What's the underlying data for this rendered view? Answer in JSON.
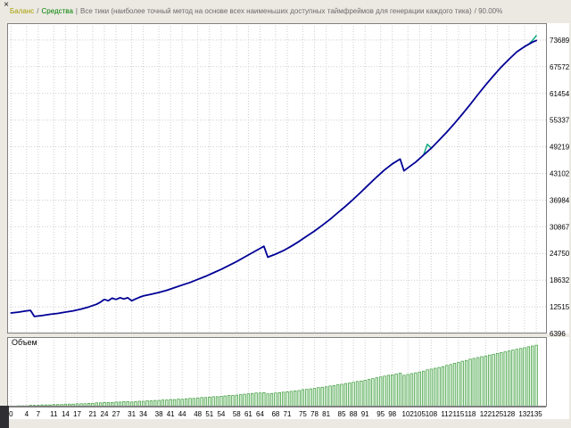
{
  "window": {
    "close_button": "×"
  },
  "header": {
    "balance_label": "Баланс",
    "separator": "/",
    "equity_label": "Средства",
    "separator2": "|",
    "model_text": "Все тики (наиболее точный метод на основе всех наименьших доступных таймфреймов для генерации каждого тика)",
    "quality_label": "/ 90.00%"
  },
  "volume_panel": {
    "label": "Объем"
  },
  "colors": {
    "balance_line": "#000096",
    "equity_line": "#00a878",
    "volume_fill": "#d6eed6",
    "volume_stroke": "#3a9a3a",
    "grid": "#cdcdcd",
    "frame": "#808080",
    "panel_bg": "#ffffff",
    "window_bg": "#ece9e3",
    "balance_label_color": "#a8a000",
    "equity_label_color": "#008000",
    "model_text_color": "#6b6b6b",
    "tick_text_color": "#000000"
  },
  "chart_data": [
    {
      "type": "line",
      "title": "Баланс / Средства",
      "xlabel": "",
      "ylabel": "",
      "xlim": [
        -1,
        137.5
      ],
      "ylim": [
        6396,
        77560
      ],
      "grid": true,
      "y_ticks": [
        6396,
        12515,
        18632,
        24750,
        30867,
        36984,
        43102,
        49219,
        55337,
        61454,
        67572,
        73689
      ],
      "x_ticks": [
        0,
        4,
        7,
        11,
        14,
        17,
        21,
        24,
        27,
        31,
        34,
        38,
        41,
        44,
        48,
        51,
        54,
        58,
        61,
        64,
        68,
        71,
        75,
        78,
        81,
        85,
        88,
        91,
        95,
        98,
        102,
        105,
        108,
        112,
        115,
        118,
        122,
        125,
        128,
        132,
        135
      ],
      "series": [
        {
          "name": "Средства",
          "segments": [
            {
              "x": [
                106,
                107,
                108
              ],
              "values": [
                47300,
                49800,
                48900
              ]
            },
            {
              "x": [
                133,
                134,
                135
              ],
              "values": [
                72700,
                73600,
                74700
              ]
            }
          ]
        },
        {
          "name": "Баланс",
          "x": [
            0,
            2,
            4,
            5,
            6,
            8,
            10,
            12,
            14,
            16,
            18,
            20,
            22,
            23,
            24,
            25,
            26,
            27,
            28,
            29,
            30,
            31,
            32,
            33,
            34,
            36,
            38,
            40,
            42,
            44,
            46,
            48,
            50,
            52,
            54,
            56,
            58,
            60,
            62,
            64,
            65,
            66,
            68,
            70,
            72,
            74,
            76,
            78,
            80,
            82,
            84,
            86,
            88,
            90,
            92,
            94,
            96,
            98,
            100,
            101,
            102,
            104,
            106,
            108,
            110,
            112,
            114,
            116,
            118,
            120,
            122,
            124,
            126,
            128,
            130,
            132,
            134,
            135
          ],
          "values": [
            11100,
            11300,
            11600,
            11700,
            10300,
            10500,
            10800,
            11000,
            11300,
            11600,
            12000,
            12500,
            13100,
            13600,
            14200,
            13900,
            14500,
            14200,
            14600,
            14300,
            14600,
            13900,
            14300,
            14700,
            15000,
            15400,
            15800,
            16300,
            16900,
            17500,
            18100,
            18800,
            19500,
            20300,
            21100,
            22000,
            22900,
            23900,
            24900,
            25900,
            26400,
            23900,
            24600,
            25400,
            26400,
            27500,
            28700,
            29900,
            31200,
            32600,
            34100,
            35600,
            37200,
            38900,
            40600,
            42300,
            43900,
            45300,
            46400,
            43700,
            44400,
            45700,
            47300,
            48900,
            50700,
            52600,
            54600,
            56700,
            58900,
            61200,
            63400,
            65500,
            67500,
            69300,
            71000,
            72200,
            73200,
            73600
          ]
        }
      ]
    },
    {
      "type": "bar",
      "title": "Объем",
      "ymax": 160,
      "values": [
        1,
        1,
        2,
        2,
        2,
        3,
        3,
        3,
        4,
        4,
        4,
        5,
        5,
        5,
        6,
        6,
        6,
        7,
        7,
        7,
        8,
        8,
        9,
        9,
        10,
        10,
        10,
        11,
        11,
        12,
        12,
        11,
        12,
        13,
        13,
        14,
        14,
        15,
        15,
        16,
        16,
        17,
        17,
        18,
        18,
        19,
        20,
        20,
        21,
        22,
        22,
        23,
        24,
        24,
        25,
        26,
        27,
        27,
        28,
        29,
        30,
        31,
        32,
        33,
        33,
        34,
        31,
        32,
        33,
        34,
        35,
        36,
        37,
        38,
        39,
        41,
        42,
        43,
        44,
        46,
        47,
        48,
        50,
        51,
        53,
        54,
        56,
        57,
        59,
        61,
        62,
        64,
        66,
        68,
        70,
        72,
        74,
        76,
        77,
        79,
        81,
        76,
        78,
        80,
        82,
        84,
        86,
        89,
        91,
        93,
        95,
        97,
        100,
        102,
        105,
        107,
        110,
        112,
        115,
        117,
        119,
        121,
        123,
        125,
        127,
        129,
        131,
        133,
        135,
        137,
        139,
        141,
        143,
        145,
        147,
        149
      ]
    }
  ]
}
